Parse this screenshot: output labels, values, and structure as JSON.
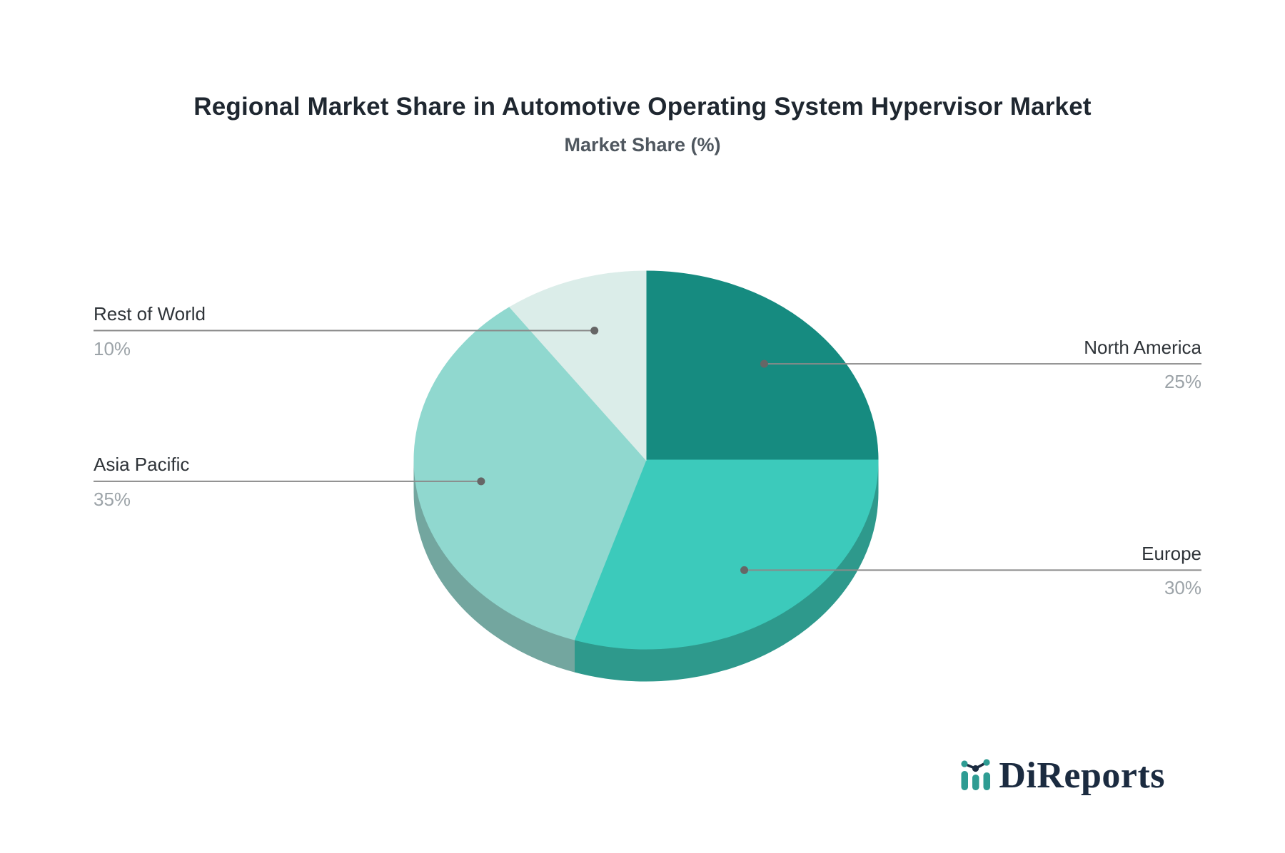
{
  "page": {
    "title": "Regional Market Share in Automotive Operating System Hypervisor Market",
    "subtitle": "Market Share (%)"
  },
  "chart_data": {
    "type": "pie",
    "title": "Regional Market Share in Automotive Operating System Hypervisor Market",
    "subtitle": "Market Share (%)",
    "unit": "%",
    "effect": "3d-depth",
    "start_angle_deg": 0,
    "direction": "clockwise",
    "legend": "none",
    "label_style": "callout-leader-lines",
    "categories": [
      "North America",
      "Europe",
      "Asia Pacific",
      "Rest of World"
    ],
    "values": [
      25,
      30,
      35,
      10
    ],
    "slices": [
      {
        "label": "North America",
        "value": 25,
        "display": "25%",
        "color": "#168B80",
        "depth_color": "#0F7A70",
        "callout_side": "right"
      },
      {
        "label": "Europe",
        "value": 30,
        "display": "30%",
        "color": "#3CCABB",
        "depth_color": "#2E998C",
        "callout_side": "right"
      },
      {
        "label": "Asia Pacific",
        "value": 35,
        "display": "35%",
        "color": "#90D8CF",
        "depth_color": "#73A69F",
        "callout_side": "left"
      },
      {
        "label": "Rest of World",
        "value": 10,
        "display": "10%",
        "color": "#DBEDE9",
        "depth_color": "#C2DCD6",
        "callout_side": "left"
      }
    ]
  },
  "logo": {
    "text": "DiReports",
    "icon": "mini-bar-chart-trend-icon"
  },
  "colors": {
    "background": "#ffffff",
    "title": "#1F2730",
    "subtitle": "#4F575F",
    "label": "#2E3338",
    "percent": "#9CA3A8",
    "leader_line": "#8A8A8A",
    "leader_dot": "#666666",
    "logo_navy": "#1B2B40",
    "logo_teal": "#2E9C93"
  }
}
